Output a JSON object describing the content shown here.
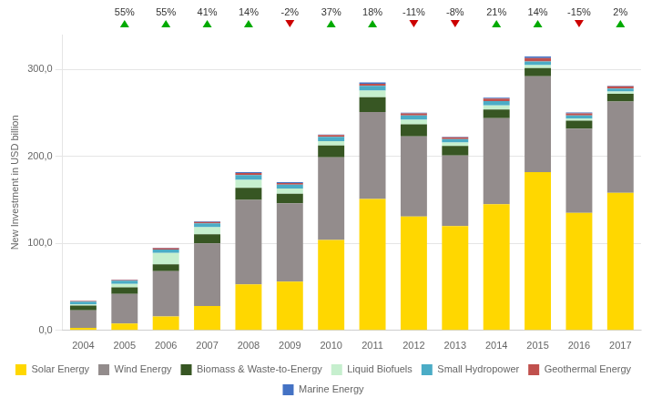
{
  "chart_data": {
    "type": "bar",
    "stacked": true,
    "categories": [
      "2004",
      "2005",
      "2006",
      "2007",
      "2008",
      "2009",
      "2010",
      "2011",
      "2012",
      "2013",
      "2014",
      "2015",
      "2016",
      "2017"
    ],
    "series": [
      {
        "name": "Solar Energy",
        "color": "#FFD700",
        "values": [
          3.0,
          8.0,
          16.0,
          28.0,
          53.0,
          56.0,
          104.0,
          151.0,
          131.0,
          120.0,
          145.0,
          182.0,
          135.0,
          158.0
        ]
      },
      {
        "name": "Wind Energy",
        "color": "#938C8C",
        "values": [
          20.0,
          34.0,
          52.0,
          72.0,
          97.0,
          90.0,
          95.0,
          100.0,
          92.0,
          81.0,
          99.0,
          110.0,
          97.0,
          105.0
        ]
      },
      {
        "name": "Biomass & Waste-to-Energy",
        "color": "#375623",
        "values": [
          5.5,
          7.5,
          8.0,
          10.5,
          14.0,
          11.0,
          13.5,
          17.0,
          14.0,
          11.0,
          10.0,
          9.5,
          9.0,
          9.0
        ]
      },
      {
        "name": "Liquid Biofuels",
        "color": "#C6EFCE",
        "values": [
          1.5,
          4.0,
          13.0,
          8.0,
          9.0,
          6.0,
          5.0,
          7.5,
          5.0,
          4.0,
          4.5,
          3.5,
          2.5,
          2.5
        ]
      },
      {
        "name": "Small Hydropower",
        "color": "#4BACC6",
        "values": [
          3.0,
          3.5,
          4.0,
          4.5,
          5.5,
          4.5,
          5.0,
          5.5,
          5.0,
          4.0,
          5.0,
          4.0,
          3.5,
          3.5
        ]
      },
      {
        "name": "Geothermal Energy",
        "color": "#C0504D",
        "values": [
          0.7,
          1.0,
          1.5,
          1.5,
          2.5,
          2.0,
          2.0,
          2.5,
          2.5,
          2.0,
          3.0,
          4.0,
          2.5,
          2.5
        ]
      },
      {
        "name": "Marine Energy",
        "color": "#4472C4",
        "values": [
          0.3,
          0.4,
          0.5,
          0.8,
          1.0,
          1.0,
          0.5,
          1.5,
          0.8,
          0.5,
          1.0,
          2.0,
          1.0,
          0.5
        ]
      }
    ],
    "ylabel": "New Investment in USD billion",
    "ylim": [
      0,
      340
    ],
    "yticks": [
      {
        "value": 0,
        "label": "0,0"
      },
      {
        "value": 100,
        "label": "100,0"
      },
      {
        "value": 200,
        "label": "200,0"
      },
      {
        "value": 300,
        "label": "300,0"
      }
    ],
    "grid": true,
    "legend": "bottom",
    "annotations": [
      {
        "x": "2005",
        "text": "55%",
        "value": 55,
        "marker": "triangle-up",
        "color": "#00AA00"
      },
      {
        "x": "2006",
        "text": "55%",
        "value": 55,
        "marker": "triangle-up",
        "color": "#00AA00"
      },
      {
        "x": "2007",
        "text": "41%",
        "value": 41,
        "marker": "triangle-up",
        "color": "#00AA00"
      },
      {
        "x": "2008",
        "text": "14%",
        "value": 14,
        "marker": "triangle-up",
        "color": "#00AA00"
      },
      {
        "x": "2009",
        "text": "-2%",
        "value": -2,
        "marker": "triangle-down",
        "color": "#CC0000"
      },
      {
        "x": "2010",
        "text": "37%",
        "value": 37,
        "marker": "triangle-up",
        "color": "#00AA00"
      },
      {
        "x": "2011",
        "text": "18%",
        "value": 18,
        "marker": "triangle-up",
        "color": "#00AA00"
      },
      {
        "x": "2012",
        "text": "-11%",
        "value": -11,
        "marker": "triangle-down",
        "color": "#CC0000"
      },
      {
        "x": "2013",
        "text": "-8%",
        "value": -8,
        "marker": "triangle-down",
        "color": "#CC0000"
      },
      {
        "x": "2014",
        "text": "21%",
        "value": 21,
        "marker": "triangle-up",
        "color": "#00AA00"
      },
      {
        "x": "2015",
        "text": "14%",
        "value": 14,
        "marker": "triangle-up",
        "color": "#00AA00"
      },
      {
        "x": "2016",
        "text": "-15%",
        "value": -15,
        "marker": "triangle-down",
        "color": "#CC0000"
      },
      {
        "x": "2017",
        "text": "2%",
        "value": 2,
        "marker": "triangle-up",
        "color": "#00AA00"
      }
    ]
  }
}
